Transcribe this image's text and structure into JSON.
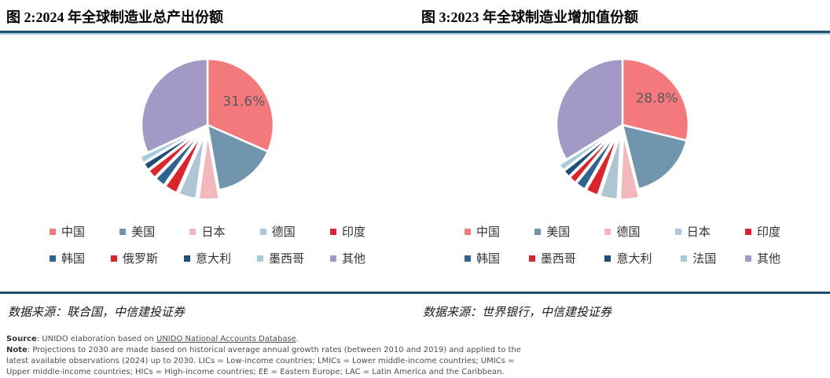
{
  "chart_data": [
    {
      "type": "pie",
      "title": "图 2:2024 年全球制造业总产出份额",
      "source_caption": "数据来源：联合国，中信建投证券",
      "data_label": "31.6%",
      "labeled_category": "中国",
      "legend_position": "bottom",
      "categories": [
        "中国",
        "美国",
        "日本",
        "德国",
        "印度",
        "韩国",
        "俄罗斯",
        "意大利",
        "墨西哥",
        "其他"
      ],
      "values": [
        31.6,
        15.6,
        5.0,
        4.4,
        3.2,
        2.6,
        2.2,
        1.8,
        1.7,
        31.9
      ],
      "colors": [
        "#F4797D",
        "#7295AE",
        "#F3B8BC",
        "#AFC5D3",
        "#D8262C",
        "#2F6491",
        "#D8262C",
        "#1F4E79",
        "#A6CCDB",
        "#A29AC4"
      ]
    },
    {
      "type": "pie",
      "title": "图 3:2023 年全球制造业增加值份额",
      "source_caption": "数据来源：世界银行，中信建投证券",
      "data_label": "28.8%",
      "labeled_category": "中国",
      "legend_position": "bottom",
      "categories": [
        "中国",
        "美国",
        "德国",
        "日本",
        "印度",
        "韩国",
        "墨西哥",
        "意大利",
        "法国",
        "其他"
      ],
      "values": [
        28.8,
        17.3,
        4.7,
        4.4,
        3.1,
        2.5,
        1.9,
        1.8,
        1.7,
        33.8
      ],
      "colors": [
        "#F4797D",
        "#7295AE",
        "#F3B8BC",
        "#AFC5D3",
        "#D8262C",
        "#2F6491",
        "#D8262C",
        "#1F4E79",
        "#A6CCDB",
        "#A29AC4"
      ]
    }
  ],
  "footnote": {
    "source_label": "Source",
    "source_pre": ": UNIDO elaboration based on ",
    "source_link": "UNIDO National Accounts Database",
    "source_post": ".",
    "note_label": "Note",
    "note_text": ": Projections to 2030 are made based on historical average annual growth rates (between 2010 and 2019) and applied to the latest available observations (2024) up to 2030. LICs = Low-income countries; LMICs = Lower middle-income countries; UMICs = Upper middle-income countries; HICs = High-income countries; EE = Eastern Europe; LAC = Latin America and the Caribbean."
  },
  "style_colors": {
    "rule_dark": "#1D5070",
    "rule_light": "#A9CBDE",
    "data_label_gray": "#595959"
  }
}
